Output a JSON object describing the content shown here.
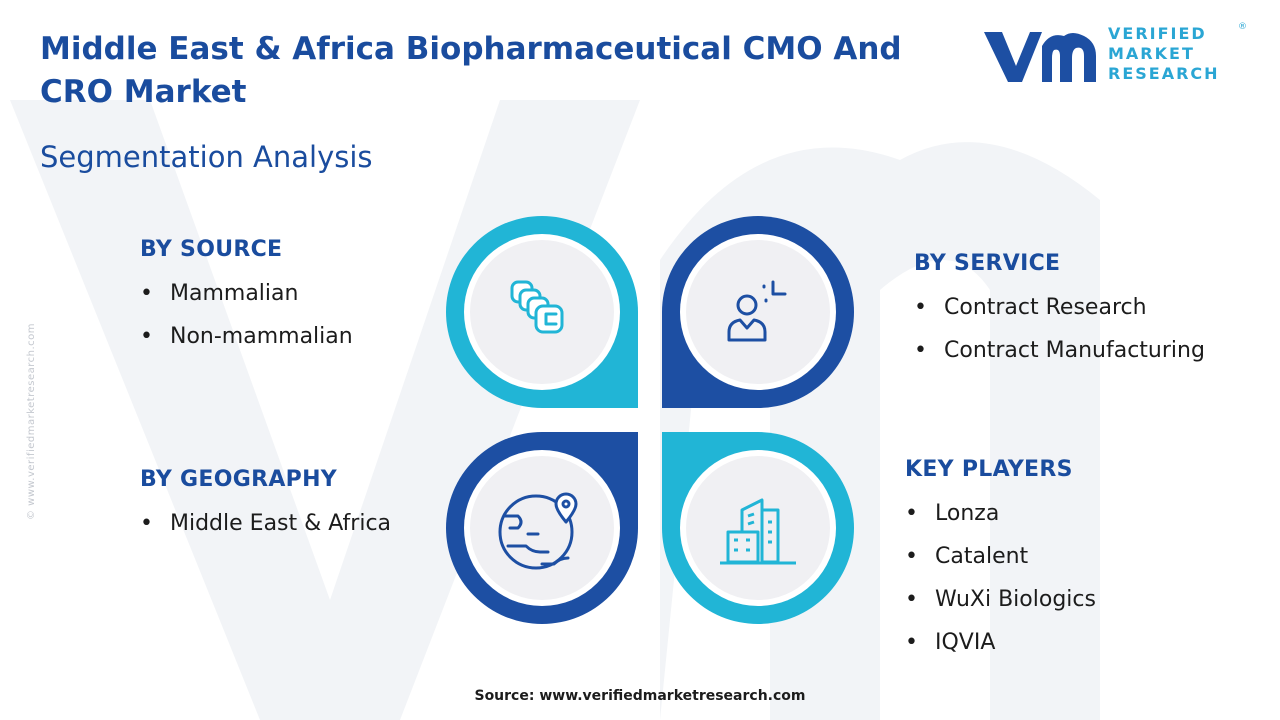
{
  "header": {
    "title": "Middle East & Africa Biopharmaceutical CMO And CRO Market",
    "subtitle": "Segmentation Analysis"
  },
  "logo": {
    "line1": "VERIFIED",
    "line2": "MARKET",
    "line3": "RESEARCH",
    "registered": "®"
  },
  "side_text": "© www.verifiedmarketresearch.com",
  "segments": {
    "source": {
      "heading": "BY SOURCE",
      "items": [
        "Mammalian",
        "Non-mammalian"
      ],
      "icon": "cells-icon"
    },
    "service": {
      "heading": "BY SERVICE",
      "items": [
        "Contract Research",
        "Contract Manufacturing"
      ],
      "icon": "researcher-icon"
    },
    "geography": {
      "heading": "BY GEOGRAPHY",
      "items": [
        "Middle East & Africa"
      ],
      "icon": "globe-location-icon"
    },
    "players": {
      "heading": "KEY PLAYERS",
      "items": [
        "Lonza",
        "Catalent",
        "WuXi Biologics",
        "IQVIA"
      ],
      "icon": "buildings-icon"
    }
  },
  "colors": {
    "title": "#1a4c9e",
    "cyan": "#21b5d6",
    "navy": "#1d4fa3",
    "icon_bg": "#f0f0f3"
  },
  "footer": {
    "source": "Source: www.verifiedmarketresearch.com"
  }
}
